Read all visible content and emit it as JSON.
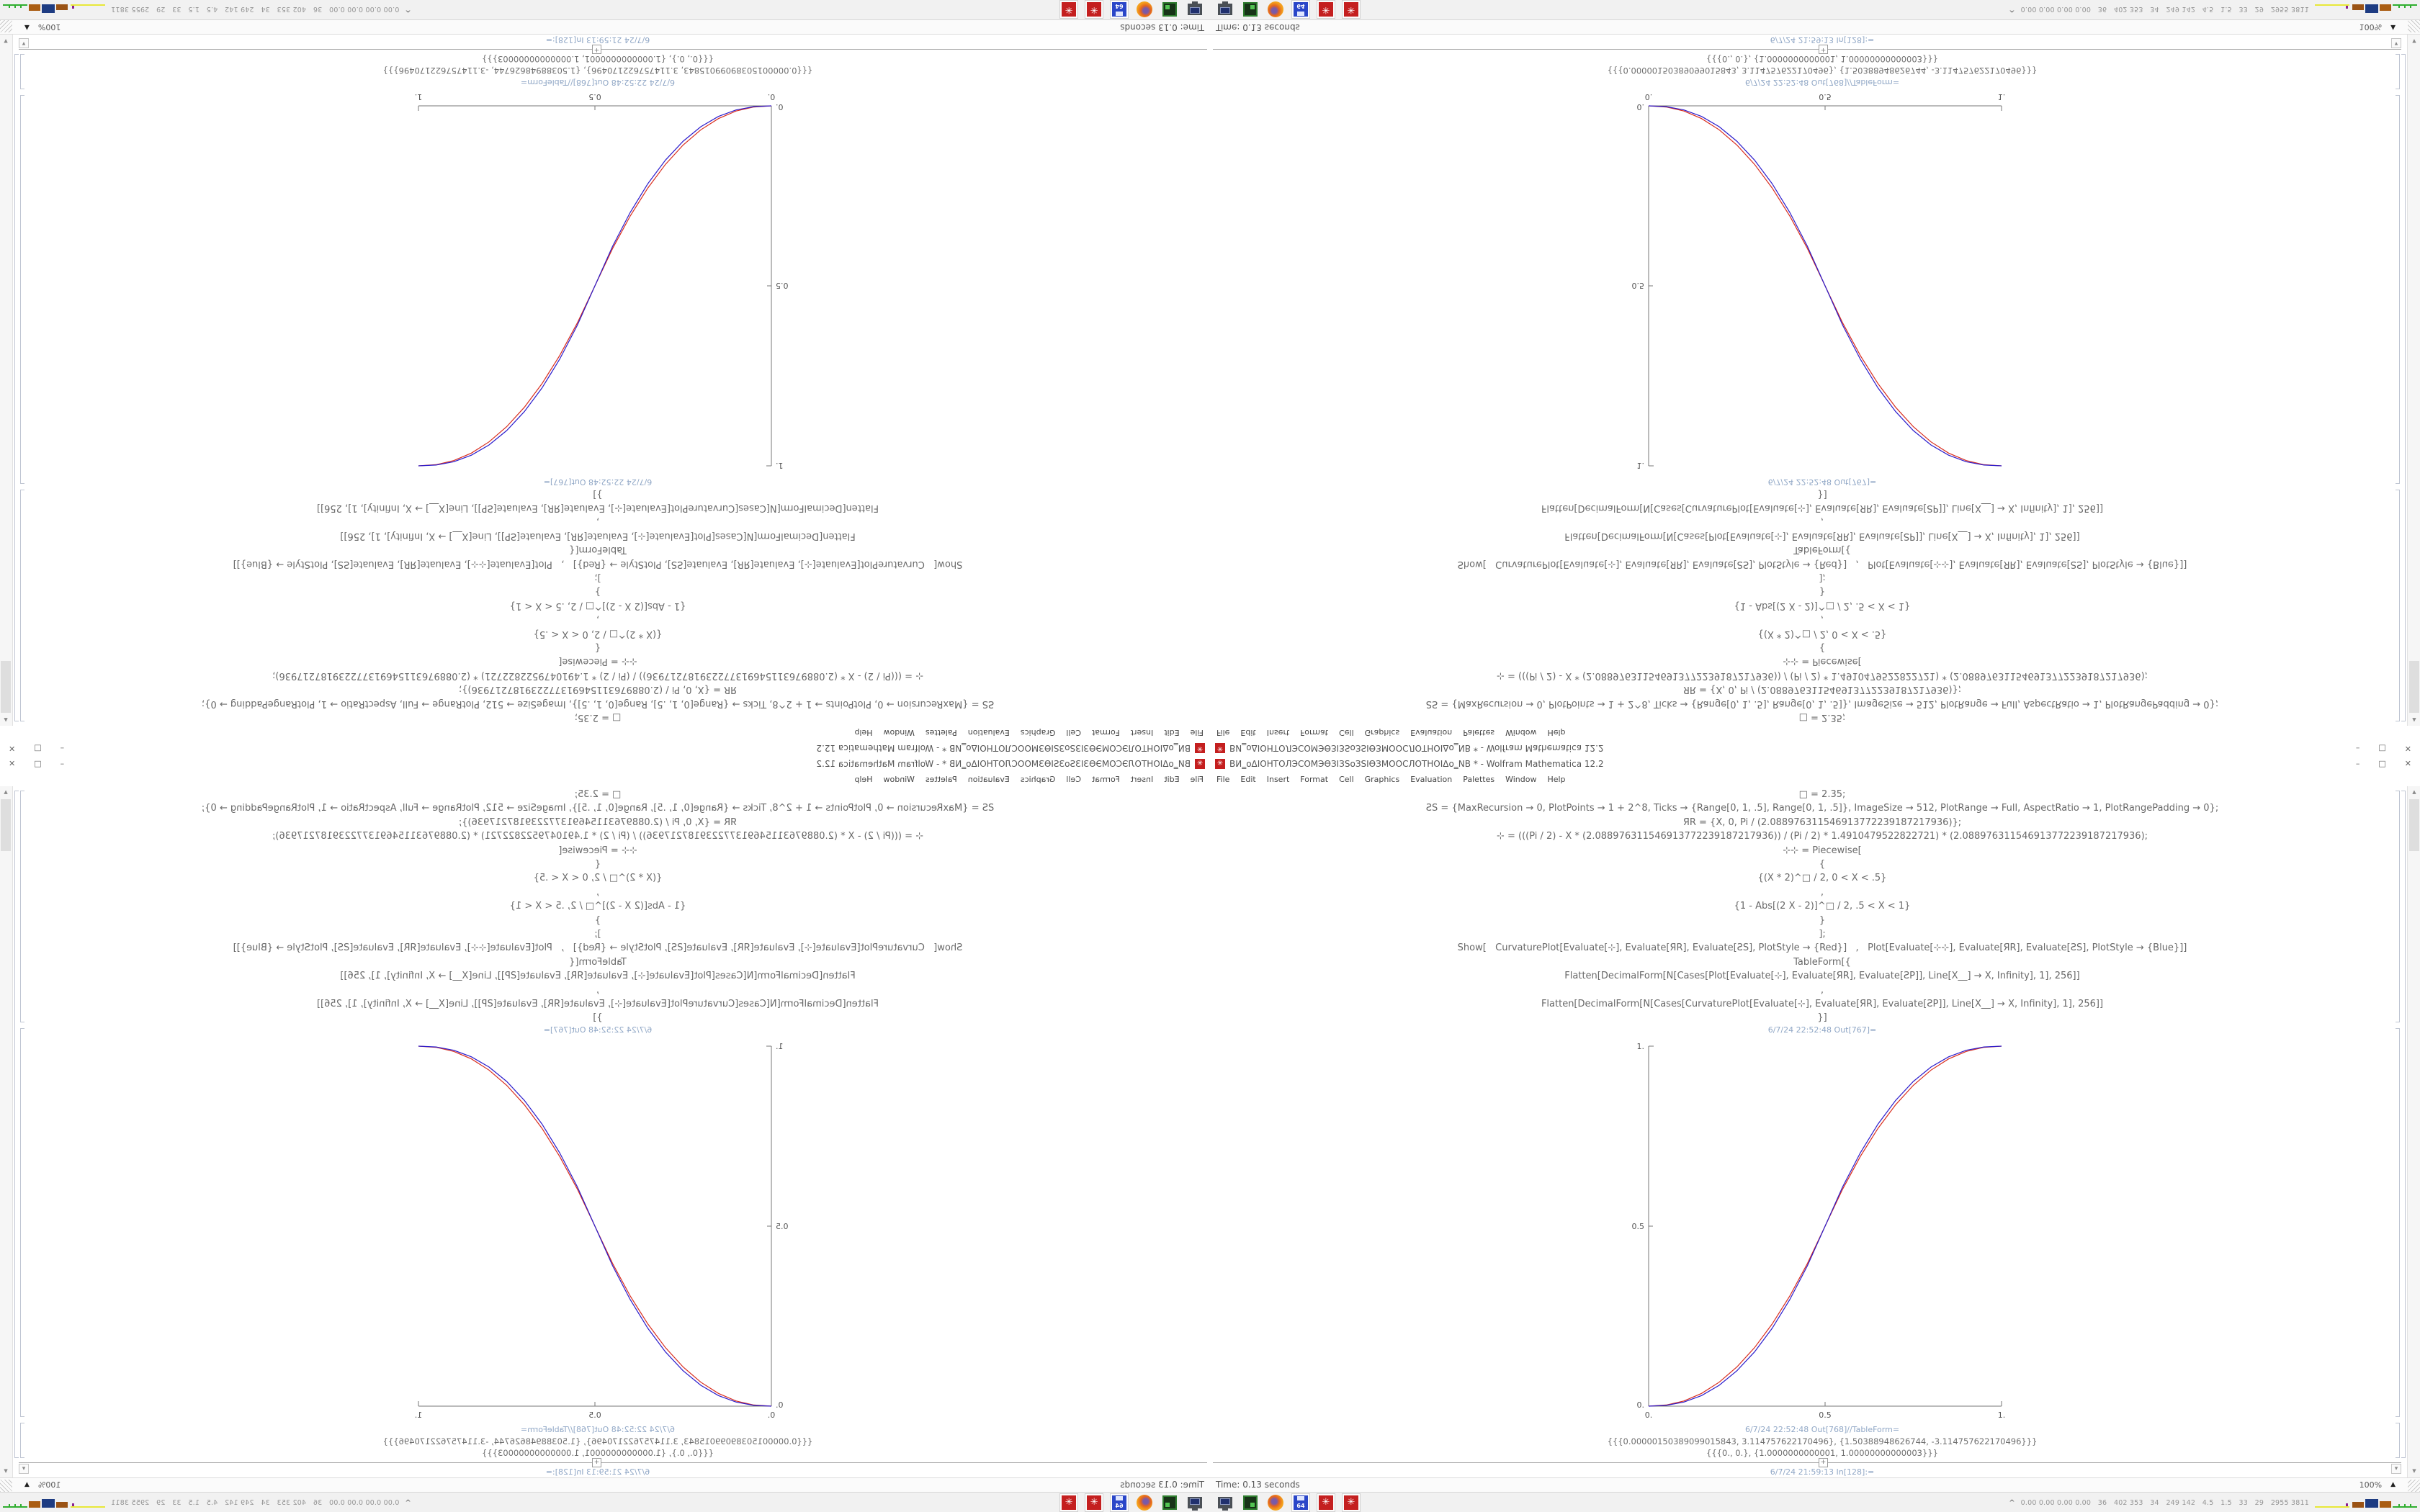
{
  "window": {
    "title": "ВИ‗оΔІОНТОЛЭСОМЭѲЗІЗЅоЗЅІѲЗМООСЛОТНОІΔо‗NB * - Wolfram Mathematica 12.2",
    "icon_glyph": "✳",
    "menu": [
      "File",
      "Edit",
      "Insert",
      "Format",
      "Cell",
      "Graphics",
      "Evaluation",
      "Palettes",
      "Window",
      "Help"
    ],
    "buttons": {
      "minimize": "–",
      "maximize": "□",
      "close": "✕"
    }
  },
  "notebook": {
    "code_lines": [
      "□ = 2.35;",
      "ƧS = {MaxRecursion → 0, PlotPoints → 1 + 2^8, Ticks → {Range[0, 1, .5], Range[0, 1, .5]}, ImageSize → 512, PlotRange → Full, AspectRatio → 1, PlotRangePadding → 0};",
      "ЯR = {X, 0, Pi / (2.088976311546913772239187217936)};",
      "⊹ = (((Pi / 2) - X * (2.088976311546913772239187217936)) / (Pi / 2) * 1.4910479522822721) * (2.088976311546913772239187217936);",
      "⊹⊹ = Piecewise[",
      "{",
      "{(X * 2)^□ / 2, 0 < X < .5}",
      ",",
      "{1 - Abs[(2 X - 2)]^□ / 2, .5 < X < 1}",
      "}",
      "];",
      "Show[   CurvaturePlot[Evaluate[⊹], Evaluate[ЯR], Evaluate[ƧS], PlotStyle → {Red}]   ,   Plot[Evaluate[⊹⊹], Evaluate[ЯR], Evaluate[ƧS], PlotStyle → {Blue}]]",
      "TableForm[{",
      "Flatten[DecimalForm[N[Cases[Plot[Evaluate[⊹], Evaluate[ЯR], Evaluate[ƧP]], Line[X__] → X, Infinity], 1], 256]]",
      ",",
      "Flatten[DecimalForm[N[Cases[CurvaturePlot[Evaluate[⊹], Evaluate[ЯR], Evaluate[ƧP]], Line[X__] → X, Infinity], 1], 256]]",
      "}]"
    ],
    "out_plot_label": "6/7/24 22:52:48 Out[767]=",
    "out_table_label": "6/7/24 22:52:48 Out[768]//TableForm=",
    "table_row1": "{{{0.00000150389099015843, 3.114757622170496}, {1.50388948626744, -3.114757622170496}}}",
    "table_row2": "{{{0., 0.}, {1.0000000000001, 1.00000000000003}}}",
    "insert_plus": "+",
    "next_in_label": "6/7/24 21:59:13 In[128]:="
  },
  "statusbar": {
    "timing": "Time: 0.13 seconds",
    "zoom": "100%"
  },
  "taskbar": {
    "floppy_label": "64",
    "tray_expand": "^",
    "tray_stats": "0.00 0.00 0.00 0.00   36   402 353   34   249 142   4.5   1.5   33   29   2955 3811"
  },
  "chart_data": {
    "type": "line",
    "title": "",
    "xlabel": "",
    "ylabel": "",
    "xlim": [
      0,
      1
    ],
    "ylim": [
      0,
      1
    ],
    "grid": false,
    "legend": "none",
    "xticks": [
      0,
      0.5,
      1
    ],
    "yticks": [
      0,
      0.5,
      1
    ],
    "xtick_labels": [
      "0.",
      "0.5",
      "1."
    ],
    "ytick_labels": [
      "0.",
      "0.5",
      "1."
    ],
    "x": [
      0,
      0.05,
      0.1,
      0.15,
      0.2,
      0.25,
      0.3,
      0.35,
      0.4,
      0.45,
      0.5,
      0.55,
      0.6,
      0.65,
      0.7,
      0.75,
      0.8,
      0.85,
      0.9,
      0.95,
      1
    ],
    "series": [
      {
        "name": "CurvaturePlot[⊹] (Red)",
        "color": "#d92c1d",
        "values": [
          0,
          0.0032,
          0.0145,
          0.0354,
          0.0666,
          0.1088,
          0.1625,
          0.2281,
          0.3061,
          0.3965,
          0.5,
          0.6035,
          0.6939,
          0.7719,
          0.8375,
          0.8912,
          0.9334,
          0.9646,
          0.9855,
          0.9968,
          1
        ]
      },
      {
        "name": "Plot[⊹⊹] (Blue)",
        "color": "#2b1ccc",
        "values": [
          0,
          0.0022,
          0.0114,
          0.0295,
          0.058,
          0.0981,
          0.1506,
          0.2162,
          0.296,
          0.3903,
          0.5,
          0.6097,
          0.704,
          0.7838,
          0.8494,
          0.9019,
          0.942,
          0.9705,
          0.9886,
          0.9978,
          1
        ]
      }
    ]
  }
}
